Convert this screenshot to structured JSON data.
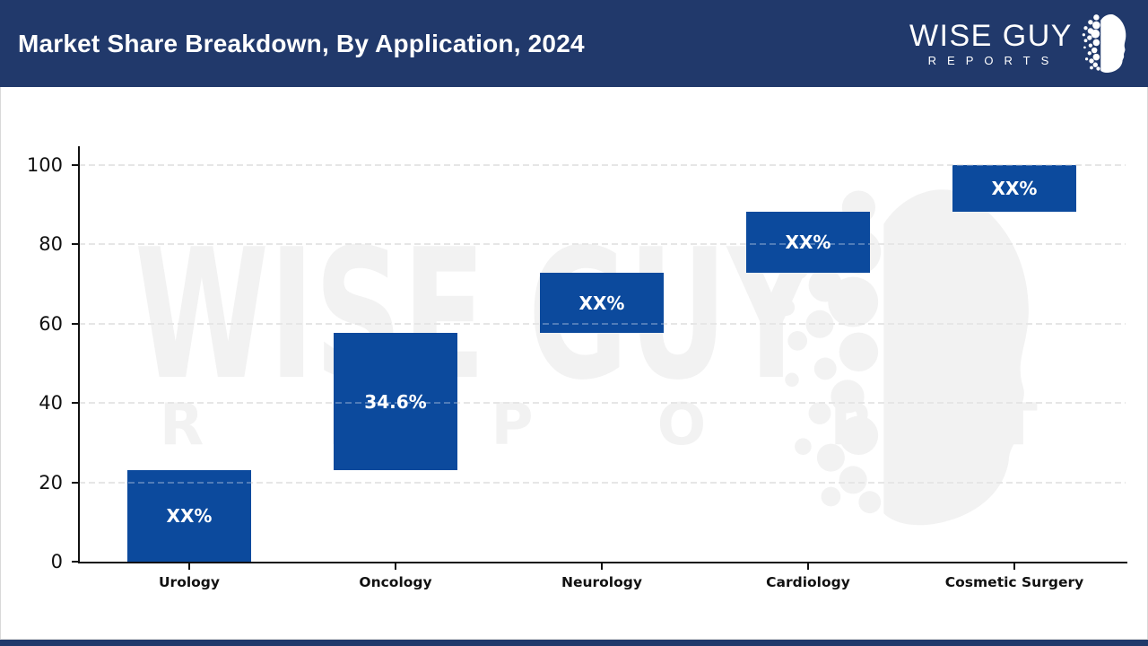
{
  "header": {
    "title": "Market Share Breakdown, By Application, 2024",
    "logo": {
      "line1": "WISE GUY",
      "line2": "REPORTS"
    }
  },
  "watermark": {
    "line1": "WISE GUY",
    "line2": "R E P O R T S"
  },
  "colors": {
    "header_bg": "#21396b",
    "footer_bg": "#21396b",
    "bar": "#0c4a9d",
    "bar_label": "#ffffff",
    "grid": "#dcdcdc",
    "axis": "#111111",
    "watermark": "#f2f2f2"
  },
  "chart_data": {
    "type": "bar",
    "variant": "floating-segment-waterfall",
    "title": "Market Share Breakdown, By Application, 2024",
    "categories": [
      "Urology",
      "Oncology",
      "Neurology",
      "Cardiology",
      "Cosmetic Surgery"
    ],
    "series": [
      {
        "name": "Market share (%)",
        "segments": [
          {
            "category": "Urology",
            "start": 0,
            "end": 23.0,
            "label": "XX%"
          },
          {
            "category": "Oncology",
            "start": 23.0,
            "end": 57.6,
            "label": "34.6%"
          },
          {
            "category": "Neurology",
            "start": 57.6,
            "end": 72.7,
            "label": "XX%"
          },
          {
            "category": "Cardiology",
            "start": 72.7,
            "end": 88.1,
            "label": "XX%"
          },
          {
            "category": "Cosmetic Surgery",
            "start": 88.1,
            "end": 99.8,
            "label": "XX%"
          }
        ]
      }
    ],
    "xlabel": "",
    "ylabel": "",
    "ylim": [
      0,
      104
    ],
    "y_ticks": [
      0,
      20,
      40,
      60,
      80,
      100
    ],
    "grid": "horizontal dashed",
    "legend": "none",
    "bar_color": "#0c4a9d",
    "bar_label_color": "#ffffff"
  }
}
